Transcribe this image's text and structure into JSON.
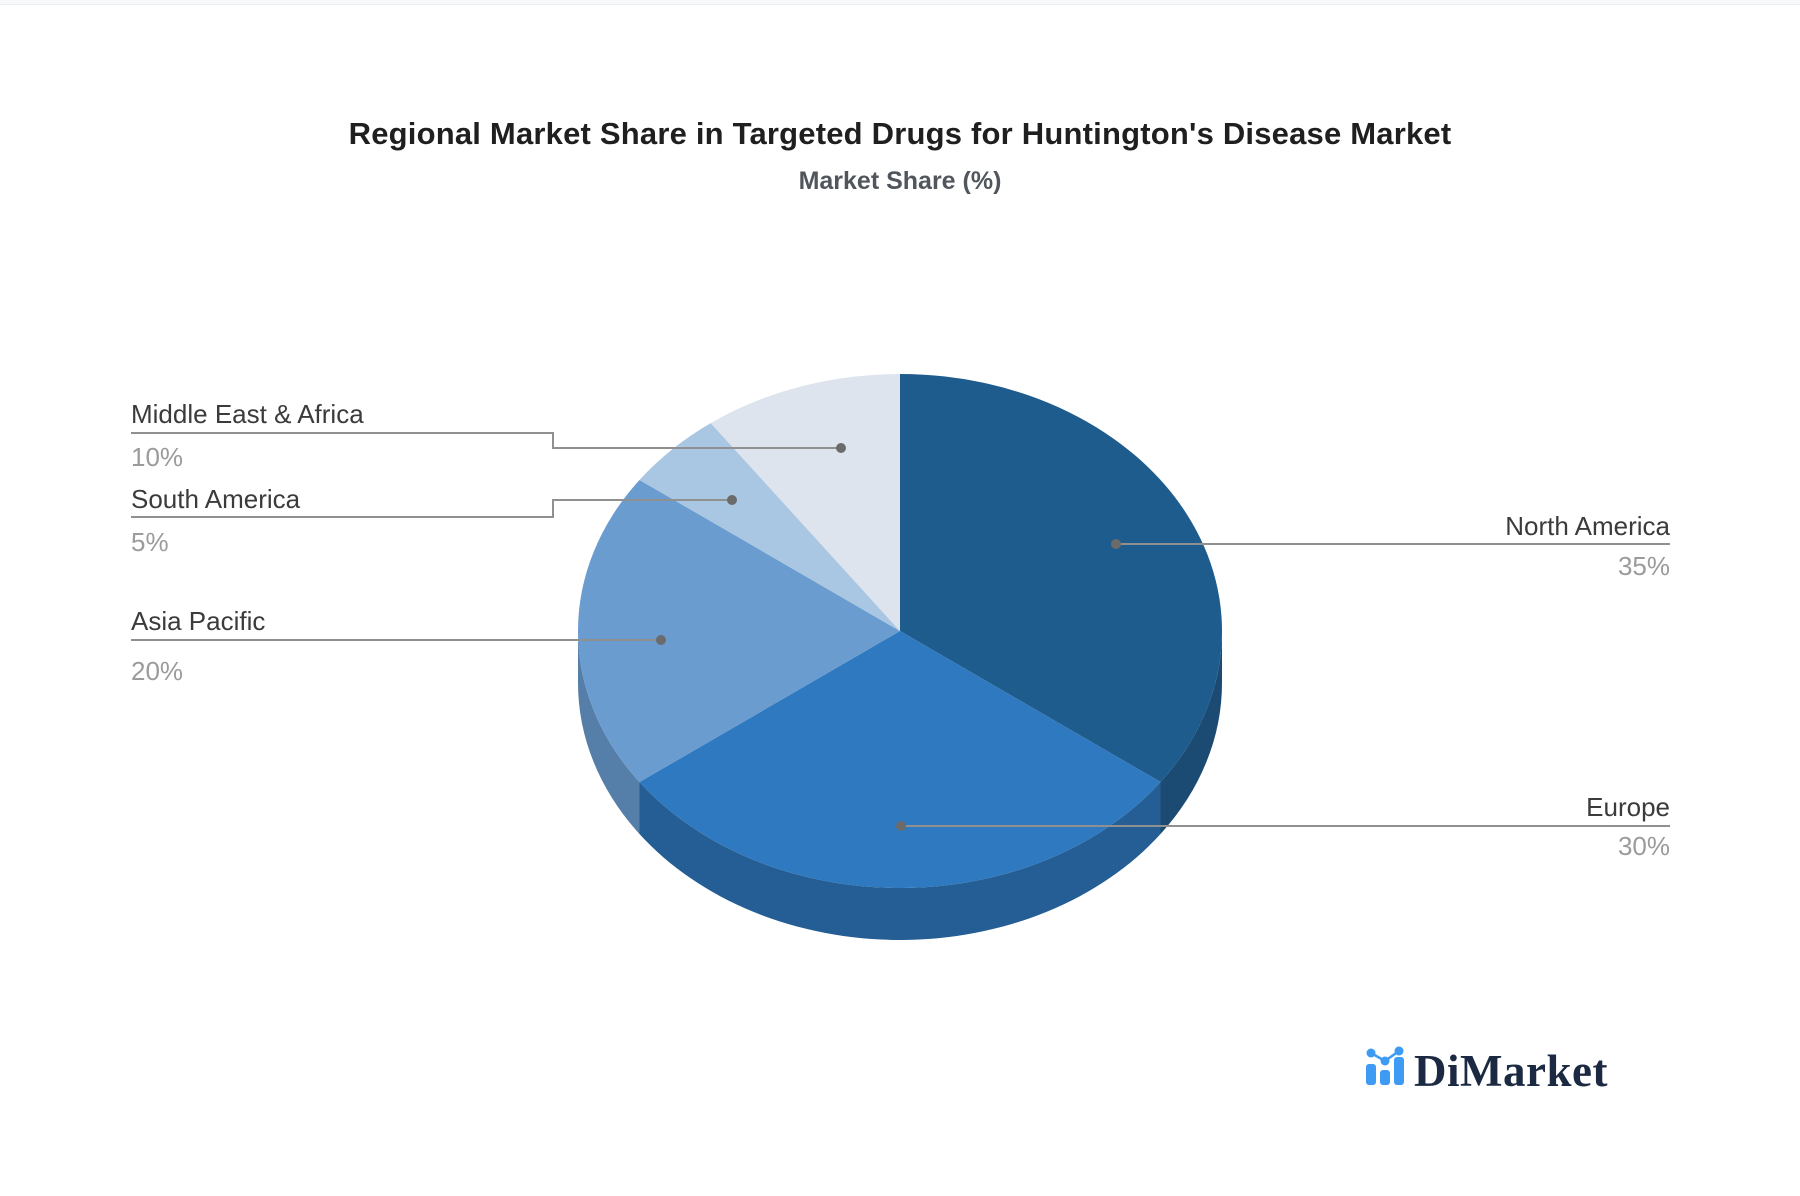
{
  "title": "Regional Market Share in Targeted Drugs for Huntington's Disease Market",
  "subtitle": "Market Share (%)",
  "chart_data": {
    "type": "pie",
    "title": "Regional Market Share in Targeted Drugs for Huntington's Disease Market",
    "subtitle": "Market Share (%)",
    "unit": "%",
    "style": "3d-pie",
    "direction": "clockwise",
    "start_angle_deg_from_top": 0,
    "labels_position": "callouts",
    "slices": [
      {
        "label": "North America",
        "value": 35,
        "pct": "35%",
        "color": "#1f5c8e",
        "rim": "#1b4b72"
      },
      {
        "label": "Europe",
        "value": 30,
        "pct": "30%",
        "color": "#2e79bf",
        "rim": "#245e94"
      },
      {
        "label": "Asia Pacific",
        "value": 20,
        "pct": "20%",
        "color": "#6a9cd0",
        "rim": "#557ea8"
      },
      {
        "label": "South America",
        "value": 5,
        "pct": "5%",
        "color": "#a9c6e3",
        "rim": null
      },
      {
        "label": "Middle East & Africa",
        "value": 10,
        "pct": "10%",
        "color": "#dde4ee",
        "rim": null
      }
    ]
  },
  "colors": {
    "connector_line": "#909090",
    "connector_dot": "#6b6b6b",
    "label_text": "#3b3b3b",
    "percent_text": "#9b9b9b",
    "logo_icon_blue": "#3e9bf4",
    "logo_text_navy": "#1b2942"
  },
  "logo": {
    "text": "DiMarket",
    "icon": "bar-chart-with-trend-dots-icon"
  }
}
